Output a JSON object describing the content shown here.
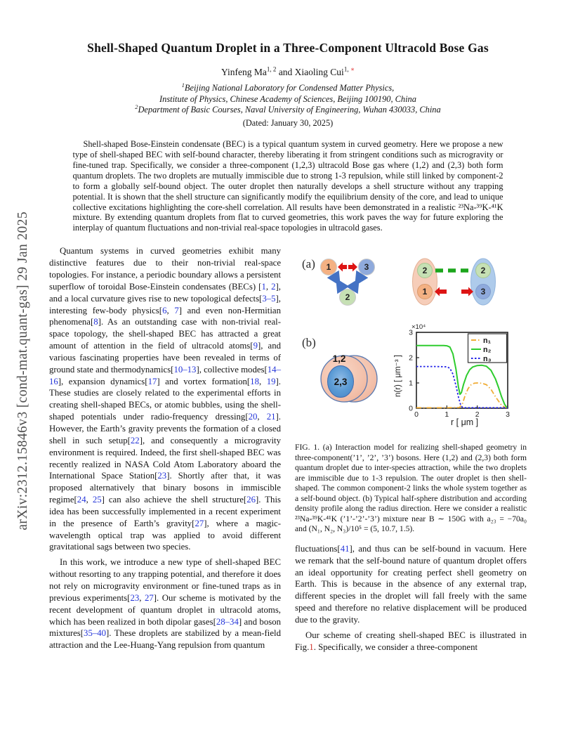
{
  "arxiv_banner": "arXiv:2312.15846v3 [cond-mat.quant-gas] 29 Jan 2025",
  "header": {
    "title": "Shell-Shaped Quantum Droplet in a Three-Component Ultracold Bose Gas",
    "authors_segments": [
      {
        "t": "Yinfeng Ma"
      },
      {
        "t": "1, 2",
        "s": "sup"
      },
      {
        "t": " and Xiaoling Cui"
      },
      {
        "t": "1, ",
        "s": "sup"
      },
      {
        "t": "∗",
        "s": "supstar"
      }
    ],
    "affiliation_lines": [
      {
        "segments": [
          {
            "t": "1",
            "s": "sup"
          },
          {
            "t": "Beijing National Laboratory for Condensed Matter Physics,"
          }
        ]
      },
      {
        "segments": [
          {
            "t": "Institute of Physics, Chinese Academy of Sciences, Beijing 100190, China"
          }
        ]
      },
      {
        "segments": [
          {
            "t": "2",
            "s": "sup"
          },
          {
            "t": "Department of Basic Courses, Naval University of Engineering, Wuhan 430033, China"
          }
        ]
      }
    ],
    "dated": "(Dated: January 30, 2025)"
  },
  "abstract": {
    "text": "Shell-shaped Bose-Einstein condensate (BEC) is a typical quantum system in curved geometry. Here we propose a new type of shell-shaped BEC with self-bound character, thereby liberating it from stringent conditions such as microgravity or fine-tuned trap. Specifically, we consider a three-component (1,2,3) ultracold Bose gas where (1,2) and (2,3) both form quantum droplets. The two droplets are mutually immiscible due to strong 1-3 repulsion, while still linked by component-2 to form a globally self-bound object. The outer droplet then naturally develops a shell structure without any trapping potential. It is shown that the shell structure can significantly modify the equilibrium density of the core, and lead to unique collective excitations highlighting the core-shell correlation. All results have been demonstrated in a realistic ²³Na-³⁹K-⁴¹K mixture. By extending quantum droplets from flat to curved geometries, this work paves the way for future exploring the interplay of quantum fluctuations and non-trivial real-space topologies in ultracold gases."
  },
  "body": {
    "left_paragraphs": [
      {
        "segments": [
          {
            "t": "Quantum systems in curved geometries exhibit many distinctive features due to their non-trivial real-space topologies. For instance, a periodic boundary allows a persistent superflow of toroidal Bose-Einstein condensates (BECs) ["
          },
          {
            "t": "1",
            "s": "cite"
          },
          {
            "t": ", "
          },
          {
            "t": "2",
            "s": "cite"
          },
          {
            "t": "], and a local curvature gives rise to new topological defects["
          },
          {
            "t": "3–5",
            "s": "cite"
          },
          {
            "t": "], interesting few-body physics["
          },
          {
            "t": "6",
            "s": "cite"
          },
          {
            "t": ", "
          },
          {
            "t": "7",
            "s": "cite"
          },
          {
            "t": "] and even non-Hermitian phenomena["
          },
          {
            "t": "8",
            "s": "cite"
          },
          {
            "t": "]. As an outstanding case with non-trivial real-space topology, the shell-shaped BEC has attracted a great amount of attention in the field of ultracold atoms["
          },
          {
            "t": "9",
            "s": "cite"
          },
          {
            "t": "], and various fascinating properties have been revealed in terms of ground state and thermodynamics["
          },
          {
            "t": "10–13",
            "s": "cite"
          },
          {
            "t": "], collective modes["
          },
          {
            "t": "14–16",
            "s": "cite"
          },
          {
            "t": "], expansion dynamics["
          },
          {
            "t": "17",
            "s": "cite"
          },
          {
            "t": "] and vortex formation["
          },
          {
            "t": "18",
            "s": "cite"
          },
          {
            "t": ", "
          },
          {
            "t": "19",
            "s": "cite"
          },
          {
            "t": "]. These studies are closely related to the experimental efforts in creating shell-shaped BECs, or atomic bubbles, using the shell-shaped potentials under radio-frequency dressing["
          },
          {
            "t": "20",
            "s": "cite"
          },
          {
            "t": ", "
          },
          {
            "t": "21",
            "s": "cite"
          },
          {
            "t": "]. However, the Earth’s gravity prevents the formation of a closed shell in such setup["
          },
          {
            "t": "22",
            "s": "cite"
          },
          {
            "t": "], and consequently a microgravity environment is required. Indeed, the first shell-shaped BEC was recently realized in NASA Cold Atom Laboratory aboard the International Space Station["
          },
          {
            "t": "23",
            "s": "cite"
          },
          {
            "t": "]. Shortly after that, it was proposed alternatively that binary bosons in immiscible regime["
          },
          {
            "t": "24",
            "s": "cite"
          },
          {
            "t": ", "
          },
          {
            "t": "25",
            "s": "cite"
          },
          {
            "t": "] can also achieve the shell structure["
          },
          {
            "t": "26",
            "s": "cite"
          },
          {
            "t": "]. This idea has been successfully implemented in a recent experiment in the presence of Earth’s gravity["
          },
          {
            "t": "27",
            "s": "cite"
          },
          {
            "t": "], where a magic-wavelength optical trap was applied to avoid different gravitational sags between two species."
          }
        ]
      },
      {
        "segments": [
          {
            "t": "In this work, we introduce a new type of shell-shaped BEC without resorting to any trapping potential, and therefore it does not rely on microgravity environment or fine-tuned traps as in previous experiments["
          },
          {
            "t": "23",
            "s": "cite"
          },
          {
            "t": ", "
          },
          {
            "t": "27",
            "s": "cite"
          },
          {
            "t": "]. Our scheme is motivated by the recent development of quantum droplet in ultracold atoms, which has been realized in both dipolar gases["
          },
          {
            "t": "28–34",
            "s": "cite"
          },
          {
            "t": "] and boson mixtures["
          },
          {
            "t": "35–40",
            "s": "cite"
          },
          {
            "t": "]. These droplets are stabilized by a mean-field attraction and the Lee-Huang-Yang repulsion from quantum"
          }
        ]
      }
    ],
    "right_paragraphs": [
      {
        "segments": [
          {
            "t": "fluctuations["
          },
          {
            "t": "41",
            "s": "cite"
          },
          {
            "t": "], and thus can be self-bound in vacuum. Here we remark that the self-bound nature of quantum droplet offers an ideal opportunity for creating perfect shell geometry on Earth. This is because in the absence of any external trap, different species in the droplet will fall freely with the same speed and therefore no relative displacement will be produced due to the gravity."
          }
        ]
      },
      {
        "segments": [
          {
            "t": "Our scheme of creating shell-shaped BEC is illustrated in Fig."
          },
          {
            "t": "1",
            "s": "fig"
          },
          {
            "t": ". Specifically, we consider a three-component"
          }
        ]
      }
    ]
  },
  "figure": {
    "caption_segments": [
      {
        "t": "FIG. 1. (a) Interaction model for realizing shell-shaped geometry in three-component(’1’, ’2’, ’3’) bosons. Here (1,2) and (2,3) both form quantum droplet due to inter-species attraction, while the two droplets are immiscible due to 1-3 repulsion. The outer droplet is then shell-shaped. The common component-2 links the whole system together as a self-bound object. (b) Typical half-sphere distribution and according density profile along the radius direction. Here we consider a realistic ²³Na-³⁹K-⁴¹K (’1’-’2’-’3’) mixture near B ∼ 150G with a₂₃ = −70a₀ and (N₁, N₂, N₃)/10⁵ = (5, 10.7, 1.5)."
      }
    ],
    "panel_a": {
      "tag": "(a)",
      "node1": "1",
      "node2": "2",
      "node3": "3",
      "left_ellipse_top": "2",
      "left_ellipse_bottom": "1",
      "right_ellipse_top": "2",
      "right_ellipse_bottom": "3"
    },
    "panel_b": {
      "tag": "(b)",
      "outer_label": "1,2",
      "inner_label": "2,3",
      "plot": {
        "chart_data": {
          "type": "line",
          "xlabel": "r [ μm ]",
          "ylabel": "n(r) [ μm⁻³ ]",
          "scale_note": "×10⁴",
          "xlim": [
            0,
            3
          ],
          "ylim": [
            0,
            3
          ],
          "xticks": [
            0,
            1,
            2,
            3
          ],
          "yticks": [
            0,
            1,
            2,
            3
          ],
          "legend_position": "top-right",
          "grid": false,
          "series": [
            {
              "name": "n₁",
              "color": "#F0AC35",
              "dash": "7 3 1.5 3",
              "width": 1.8,
              "points": [
                [
                  0,
                  0.02
                ],
                [
                  1.0,
                  0.02
                ],
                [
                  1.42,
                  0.03
                ],
                [
                  1.52,
                  0.2
                ],
                [
                  1.6,
                  0.5
                ],
                [
                  1.7,
                  0.78
                ],
                [
                  1.8,
                  0.93
                ],
                [
                  1.9,
                  0.99
                ],
                [
                  2.0,
                  1.0
                ],
                [
                  2.15,
                  0.99
                ],
                [
                  2.3,
                  0.93
                ],
                [
                  2.45,
                  0.75
                ],
                [
                  2.6,
                  0.45
                ],
                [
                  2.7,
                  0.28
                ],
                [
                  2.8,
                  0.12
                ],
                [
                  2.9,
                  0.04
                ],
                [
                  3.0,
                  0.02
                ]
              ]
            },
            {
              "name": "n₂",
              "color": "#2ECC2E",
              "dash": null,
              "width": 2,
              "points": [
                [
                  0,
                  2.48
                ],
                [
                  0.5,
                  2.48
                ],
                [
                  0.9,
                  2.48
                ],
                [
                  1.0,
                  2.47
                ],
                [
                  1.1,
                  2.42
                ],
                [
                  1.2,
                  2.15
                ],
                [
                  1.3,
                  1.55
                ],
                [
                  1.38,
                  0.85
                ],
                [
                  1.43,
                  0.55
                ],
                [
                  1.48,
                  0.62
                ],
                [
                  1.55,
                  0.95
                ],
                [
                  1.65,
                  1.3
                ],
                [
                  1.75,
                  1.52
                ],
                [
                  1.85,
                  1.63
                ],
                [
                  2.0,
                  1.69
                ],
                [
                  2.15,
                  1.7
                ],
                [
                  2.3,
                  1.66
                ],
                [
                  2.45,
                  1.5
                ],
                [
                  2.6,
                  1.15
                ],
                [
                  2.7,
                  0.82
                ],
                [
                  2.8,
                  0.45
                ],
                [
                  2.9,
                  0.15
                ],
                [
                  2.97,
                  0.03
                ]
              ]
            },
            {
              "name": "n₃",
              "color": "#2424E8",
              "dash": "2.5 2.5",
              "width": 1.8,
              "points": [
                [
                  0,
                  1.65
                ],
                [
                  0.6,
                  1.65
                ],
                [
                  1.0,
                  1.64
                ],
                [
                  1.1,
                  1.58
                ],
                [
                  1.2,
                  1.35
                ],
                [
                  1.3,
                  0.9
                ],
                [
                  1.38,
                  0.45
                ],
                [
                  1.45,
                  0.15
                ],
                [
                  1.5,
                  0.05
                ],
                [
                  1.6,
                  0.02
                ],
                [
                  2.2,
                  0.02
                ],
                [
                  3.0,
                  0.02
                ]
              ]
            }
          ]
        }
      }
    },
    "colors": {
      "component1": "#F4B183",
      "component2": "#C6E0B4",
      "component3": "#8FAADC",
      "repulsion_arrow": "#DD1414",
      "attraction_arrow": "#4472C4",
      "link_dash": "#1CA51C",
      "droplet12_fill": "#F6CDB9",
      "droplet23_fill": "#AECBEB",
      "shell_fill": "#F3BFAA",
      "core_fill": "#5B9BD5"
    }
  }
}
